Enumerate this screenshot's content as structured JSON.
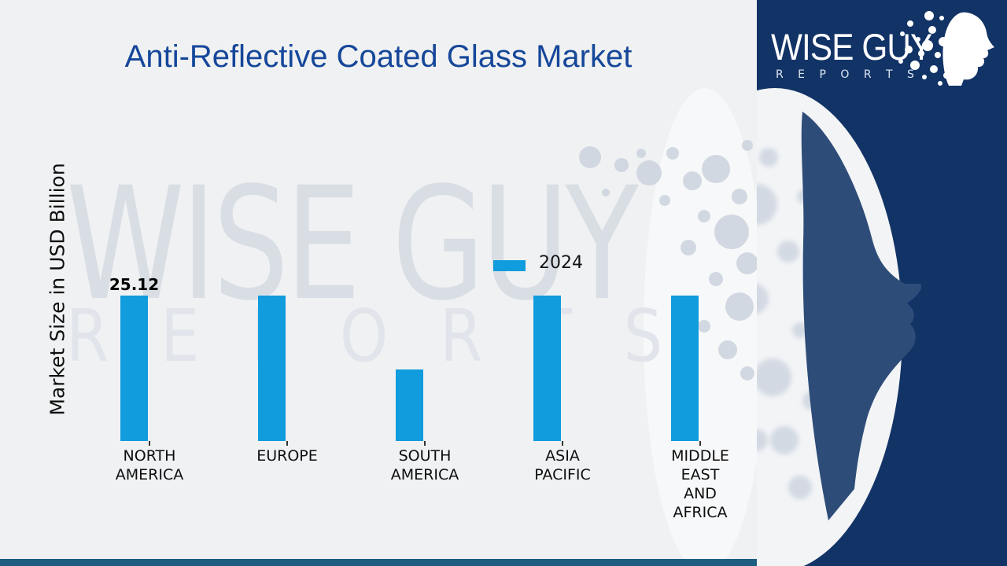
{
  "title": "Anti-Reflective Coated Glass Market",
  "ylabel": "Market Size in USD Billion",
  "legend": {
    "year": "2024"
  },
  "watermark": {
    "line1": "WISE GUY",
    "line2": "R E P O R T S"
  },
  "logo": {
    "line1": "WISE GUY",
    "line2": "R E P O R T S"
  },
  "colors": {
    "bar": "#109cdd",
    "navy": "#123366",
    "teal": "#1d5e80",
    "title": "#15479a",
    "watermark_text": "#d9dee5",
    "background": "#f0f1f2"
  },
  "chart_data": {
    "type": "bar",
    "title": "Anti-Reflective Coated Glass Market",
    "ylabel": "Market Size in USD Billion",
    "xlabel": "",
    "categories": [
      "NORTH AMERICA",
      "EUROPE",
      "SOUTH AMERICA",
      "ASIA PACIFIC",
      "MIDDLE EAST AND AFRICA"
    ],
    "tick_labels": [
      "NORTH\nAMERICA",
      "EUROPE",
      "SOUTH\nAMERICA",
      "ASIA\nPACIFIC",
      "MIDDLE\nEAST\nAND\nAFRICA"
    ],
    "series": [
      {
        "name": "2024",
        "values": [
          25.12,
          25.12,
          12.35,
          25.12,
          25.12
        ]
      }
    ],
    "bar_value_labels": [
      "25.12",
      "",
      "",
      "",
      ""
    ],
    "ylim": [
      0,
      28
    ],
    "grid": false,
    "legend_position": "upper right of plot",
    "unit": "USD Billion"
  }
}
